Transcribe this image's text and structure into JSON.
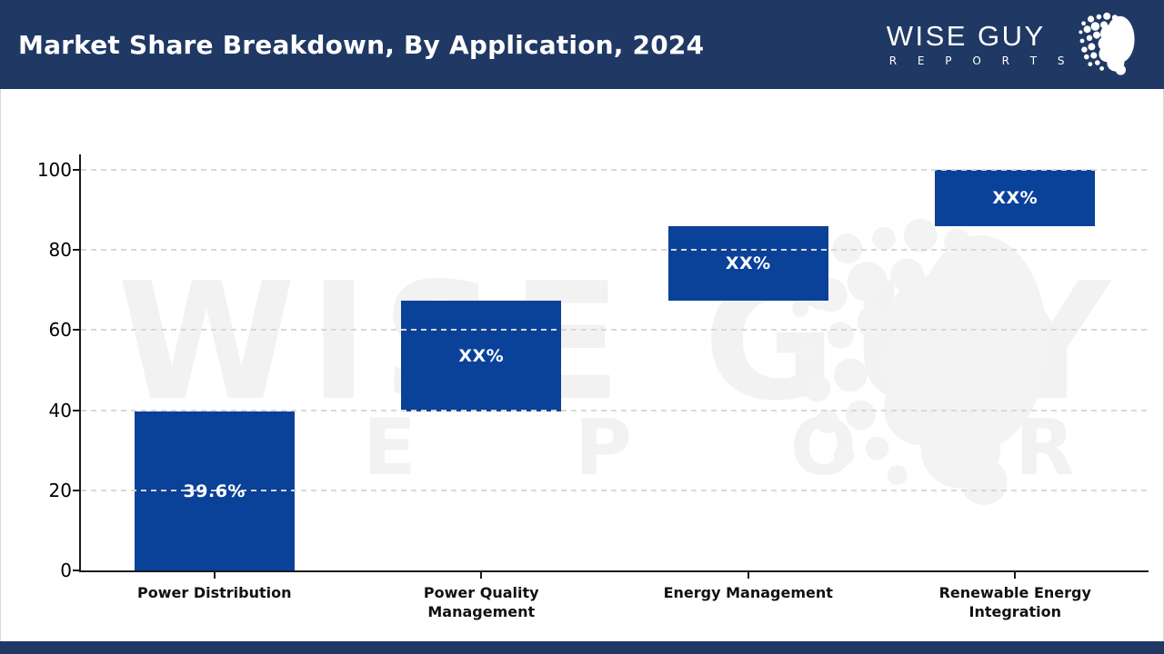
{
  "header": {
    "title": "Market Share Breakdown, By Application, 2024",
    "logo": {
      "line1": "WISE GUY",
      "line2": "R E P O R T S"
    }
  },
  "watermark": {
    "line1": "WISE GUY",
    "line2": "R E P O R T S"
  },
  "chart_data": {
    "type": "bar",
    "variant": "floating-segment-breakdown",
    "title": "Market Share Breakdown, By Application, 2024",
    "xlabel": "",
    "ylabel": "",
    "ylim": [
      0,
      100
    ],
    "yticks": [
      0,
      20,
      40,
      60,
      80,
      100
    ],
    "grid": "horizontal-dashed-over-bars",
    "legend": null,
    "bar_color": "#0a4199",
    "categories": [
      "Power Distribution",
      "Power Quality Management",
      "Energy Management",
      "Renewable Energy Integration"
    ],
    "segments": [
      {
        "category": "Power Distribution",
        "category_lines": [
          "Power Distribution"
        ],
        "start": 0,
        "end": 39.6,
        "label": "39.6%"
      },
      {
        "category": "Power Quality Management",
        "category_lines": [
          "Power Quality",
          "Management"
        ],
        "start": 39.6,
        "end": 67.3,
        "label": "XX%"
      },
      {
        "category": "Energy Management",
        "category_lines": [
          "Energy Management"
        ],
        "start": 67.3,
        "end": 85.9,
        "label": "XX%"
      },
      {
        "category": "Renewable Energy Integration",
        "category_lines": [
          "Renewable Energy",
          "Integration"
        ],
        "start": 85.9,
        "end": 100,
        "label": "XX%"
      }
    ]
  },
  "colors": {
    "header_bg": "#1f3864",
    "footer_bg": "#1f3864",
    "bar": "#0a4199",
    "grid": "#d8d8d8",
    "axis": "#1a1a1a",
    "watermark": "#f2f2f2"
  }
}
